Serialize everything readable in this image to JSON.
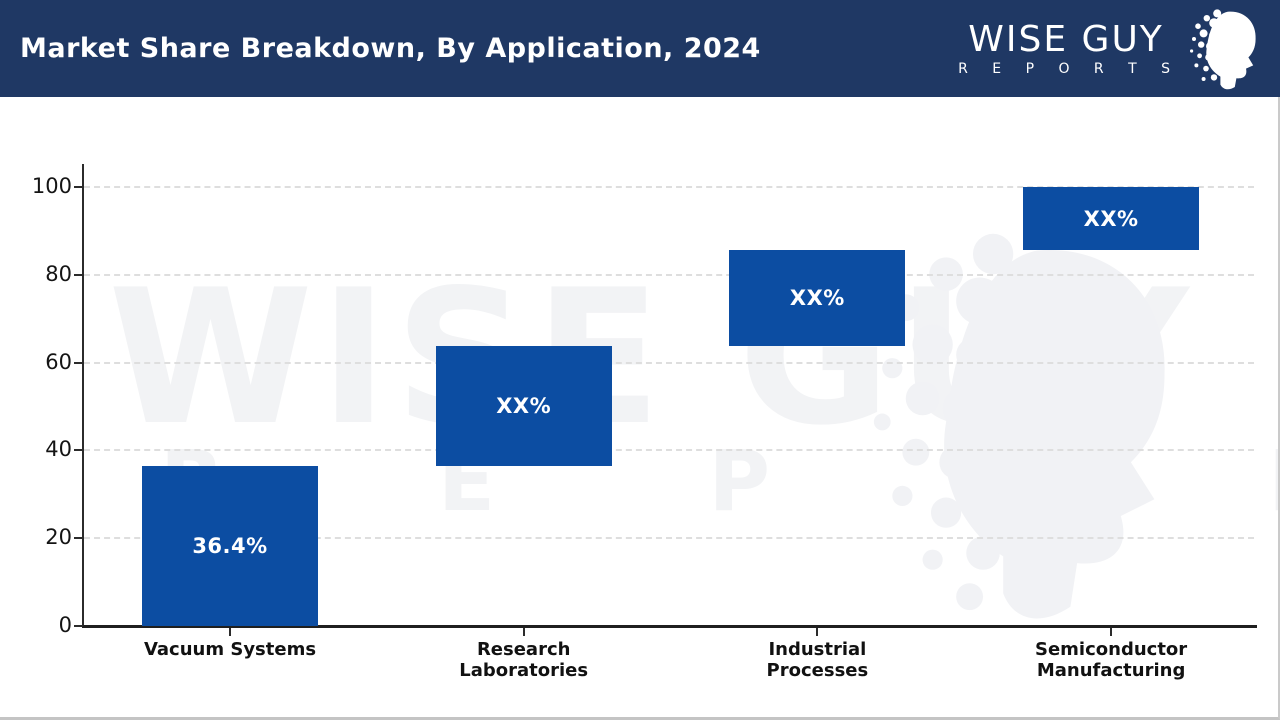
{
  "header": {
    "title": "Market Share Breakdown, By Application, 2024",
    "logo": {
      "line1": "WISE GUY",
      "line2": "R E P O R T S"
    },
    "header_bg": "#1f3864"
  },
  "watermark": {
    "line1": "WISE GUY",
    "line2": "R E P O R T S"
  },
  "chart_data": {
    "type": "bar",
    "subtype": "waterfall",
    "title": "Market Share Breakdown, By Application, 2024",
    "categories": [
      "Vacuum Systems",
      "Research Laboratories",
      "Industrial Processes",
      "Semiconductor Manufacturing"
    ],
    "category_lines": [
      [
        "Vacuum Systems"
      ],
      [
        "Research",
        "Laboratories"
      ],
      [
        "Industrial",
        "Processes"
      ],
      [
        "Semiconductor",
        "Manufacturing"
      ]
    ],
    "bars": [
      {
        "category": "Vacuum Systems",
        "label": "36.4%",
        "start": 0,
        "end": 36.4,
        "increment": 36.4
      },
      {
        "category": "Research Laboratories",
        "label": "XX%",
        "start": 36.4,
        "end": 63.8,
        "increment": 27.4
      },
      {
        "category": "Industrial Processes",
        "label": "XX%",
        "start": 63.8,
        "end": 85.6,
        "increment": 21.8
      },
      {
        "category": "Semiconductor Manufacturing",
        "label": "XX%",
        "start": 85.6,
        "end": 100,
        "increment": 14.4
      }
    ],
    "y_ticks": [
      0,
      20,
      40,
      60,
      80,
      100
    ],
    "ylim": [
      0,
      105
    ],
    "xlabel": "",
    "ylabel": "",
    "bar_color": "#0c4da2",
    "grid": "dashed-horizontal",
    "legend": "none"
  }
}
